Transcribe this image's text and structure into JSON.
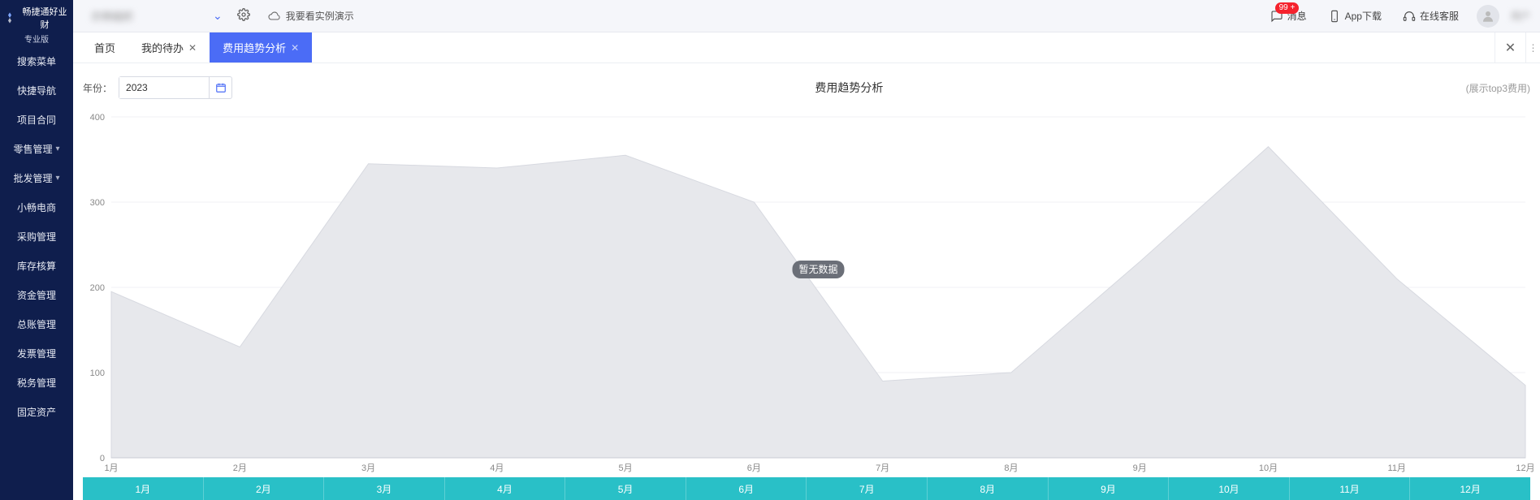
{
  "brand": {
    "name": "畅捷通好业财",
    "edition": "专业版"
  },
  "sidebar": {
    "items": [
      {
        "label": "搜索菜单",
        "expandable": false
      },
      {
        "label": "快捷导航",
        "expandable": false
      },
      {
        "label": "项目合同",
        "expandable": false
      },
      {
        "label": "零售管理",
        "expandable": true
      },
      {
        "label": "批发管理",
        "expandable": true
      },
      {
        "label": "小畅电商",
        "expandable": false
      },
      {
        "label": "采购管理",
        "expandable": false
      },
      {
        "label": "库存核算",
        "expandable": false
      },
      {
        "label": "资金管理",
        "expandable": false
      },
      {
        "label": "总账管理",
        "expandable": false
      },
      {
        "label": "发票管理",
        "expandable": false
      },
      {
        "label": "税务管理",
        "expandable": false
      },
      {
        "label": "固定资产",
        "expandable": false
      }
    ]
  },
  "topbar": {
    "org_name": "示例组织",
    "demo_text": "我要看实例演示",
    "msg_label": "消息",
    "msg_badge": "99 +",
    "app_label": "App下载",
    "service_label": "在线客服",
    "user_name": "用户"
  },
  "tabs": {
    "items": [
      {
        "label": "首页",
        "closable": false,
        "active": false
      },
      {
        "label": "我的待办",
        "closable": true,
        "active": false
      },
      {
        "label": "费用趋势分析",
        "closable": true,
        "active": true
      }
    ]
  },
  "filter": {
    "label": "年份：",
    "year": "2023"
  },
  "chart": {
    "type": "area",
    "title": "费用趋势分析",
    "note": "(展示top3费用)",
    "tooltip": "暂无数据",
    "x_labels": [
      "1月",
      "2月",
      "3月",
      "4月",
      "5月",
      "6月",
      "7月",
      "8月",
      "9月",
      "10月",
      "11月",
      "12月"
    ],
    "y_ticks": [
      0,
      100,
      200,
      300,
      400
    ],
    "ylim": [
      0,
      400
    ],
    "values": [
      195,
      130,
      345,
      340,
      355,
      300,
      90,
      100,
      230,
      365,
      210,
      85
    ],
    "area_color": "#e7e8ec",
    "line_color": "#d7d9e0",
    "grid_color": "#f0f1f4",
    "axis_color": "#c9cbd3",
    "background": "#ffffff",
    "tick_fontsize": 11,
    "tick_color": "#888888"
  },
  "month_strip": {
    "labels": [
      "1月",
      "2月",
      "3月",
      "4月",
      "5月",
      "6月",
      "7月",
      "8月",
      "9月",
      "10月",
      "11月",
      "12月"
    ],
    "background": "#29c0c7",
    "text_color": "#ffffff"
  }
}
